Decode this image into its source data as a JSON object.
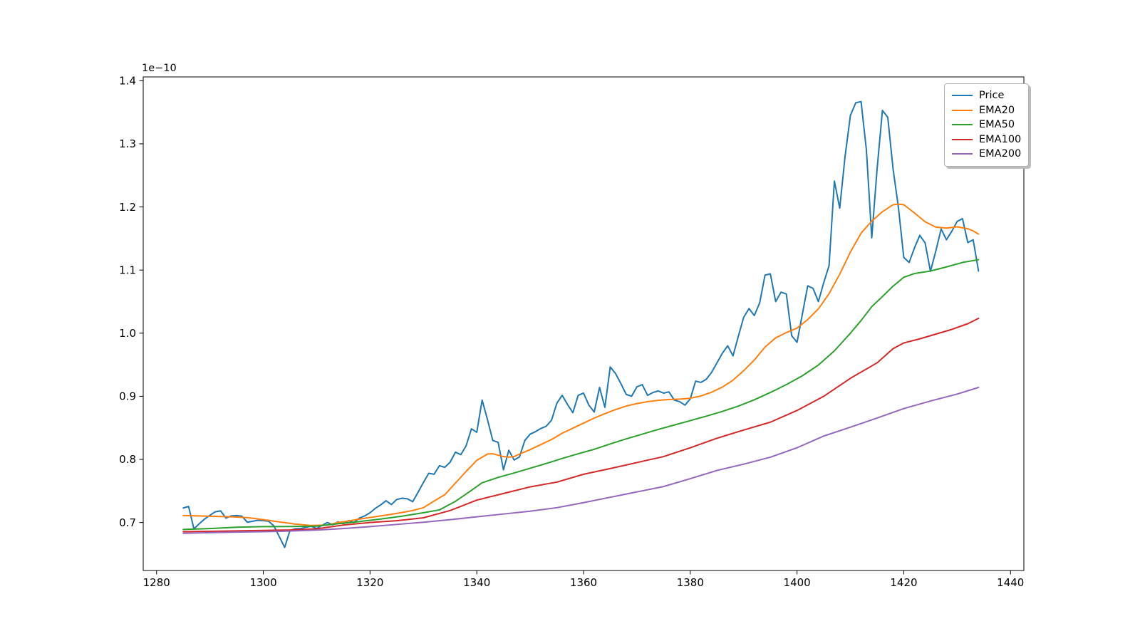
{
  "chart_data": {
    "type": "line",
    "title": "",
    "xlabel": "",
    "ylabel": "",
    "y_offset_label": "1e−10",
    "grid": false,
    "xlim": [
      1277.5,
      1442.5
    ],
    "ylim": [
      0.624,
      1.406
    ],
    "x_ticks": [
      1280,
      1300,
      1320,
      1340,
      1360,
      1380,
      1400,
      1420,
      1440
    ],
    "y_ticks": [
      0.7,
      0.8,
      0.9,
      1.0,
      1.1,
      1.2,
      1.3,
      1.4
    ],
    "legend": {
      "position": "upper right",
      "entries": [
        {
          "label": "Price",
          "color": "#1f77b4"
        },
        {
          "label": "EMA20",
          "color": "#ff7f0e"
        },
        {
          "label": "EMA50",
          "color": "#2ca02c"
        },
        {
          "label": "EMA100",
          "color": "#d62728"
        },
        {
          "label": "EMA200",
          "color": "#9467bd"
        }
      ]
    },
    "series": [
      {
        "name": "Price",
        "color": "#1f77b4",
        "x_start": 1285,
        "x_step": 1,
        "y": [
          0.723,
          0.7255,
          0.69,
          0.698,
          0.7055,
          0.7115,
          0.717,
          0.7185,
          0.707,
          0.7105,
          0.711,
          0.71,
          0.7005,
          0.702,
          0.7035,
          0.703,
          0.702,
          0.6945,
          0.6775,
          0.6605,
          0.6875,
          0.69,
          0.6905,
          0.6925,
          0.694,
          0.6905,
          0.6955,
          0.7,
          0.6965,
          0.701,
          0.698,
          0.703,
          0.7,
          0.707,
          0.7105,
          0.7155,
          0.7225,
          0.728,
          0.7345,
          0.7285,
          0.7365,
          0.7385,
          0.7375,
          0.733,
          0.748,
          0.7635,
          0.778,
          0.7765,
          0.79,
          0.7875,
          0.7955,
          0.8115,
          0.8075,
          0.8215,
          0.8485,
          0.843,
          0.894,
          0.863,
          0.83,
          0.827,
          0.7835,
          0.8145,
          0.799,
          0.804,
          0.83,
          0.84,
          0.844,
          0.849,
          0.8525,
          0.862,
          0.889,
          0.9015,
          0.887,
          0.874,
          0.9015,
          0.905,
          0.886,
          0.875,
          0.914,
          0.8825,
          0.9465,
          0.936,
          0.92,
          0.903,
          0.9,
          0.915,
          0.9185,
          0.9015,
          0.906,
          0.9085,
          0.905,
          0.907,
          0.894,
          0.8915,
          0.886,
          0.896,
          0.924,
          0.922,
          0.927,
          0.938,
          0.953,
          0.968,
          0.98,
          0.964,
          0.995,
          1.025,
          1.039,
          1.028,
          1.048,
          1.092,
          1.094,
          1.05,
          1.065,
          1.062,
          0.996,
          0.9855,
          1.03,
          1.075,
          1.071,
          1.05,
          1.08,
          1.107,
          1.241,
          1.198,
          1.28,
          1.345,
          1.365,
          1.367,
          1.29,
          1.151,
          1.26,
          1.353,
          1.342,
          1.26,
          1.199,
          1.12,
          1.112,
          1.135,
          1.155,
          1.143,
          1.098,
          1.13,
          1.165,
          1.148,
          1.1615,
          1.177,
          1.1815,
          1.1435,
          1.148,
          1.0985
        ]
      },
      {
        "name": "EMA20",
        "color": "#ff7f0e",
        "x": [
          1285,
          1288,
          1291,
          1294,
          1297,
          1300,
          1303,
          1306,
          1309,
          1312,
          1314,
          1316,
          1318,
          1320,
          1322,
          1324,
          1326,
          1328,
          1330,
          1332,
          1334,
          1336,
          1338,
          1340,
          1342,
          1343,
          1345,
          1346,
          1347,
          1348,
          1350,
          1352,
          1354,
          1356,
          1358,
          1360,
          1362,
          1364,
          1366,
          1368,
          1370,
          1372,
          1374,
          1376,
          1378,
          1380,
          1382,
          1384,
          1386,
          1388,
          1390,
          1392,
          1394,
          1396,
          1398,
          1400,
          1402,
          1404,
          1406,
          1408,
          1410,
          1412,
          1414,
          1416,
          1418,
          1419,
          1420,
          1422,
          1424,
          1426,
          1428,
          1430,
          1432,
          1433,
          1434
        ],
        "y": [
          0.711,
          0.7105,
          0.7098,
          0.709,
          0.7078,
          0.7045,
          0.701,
          0.6975,
          0.6953,
          0.696,
          0.7,
          0.7025,
          0.7055,
          0.708,
          0.7105,
          0.713,
          0.716,
          0.719,
          0.7235,
          0.734,
          0.744,
          0.7625,
          0.781,
          0.7985,
          0.8085,
          0.809,
          0.8045,
          0.8035,
          0.8045,
          0.8085,
          0.8155,
          0.8235,
          0.8315,
          0.8415,
          0.8495,
          0.8575,
          0.8655,
          0.8725,
          0.879,
          0.8845,
          0.8885,
          0.8915,
          0.8935,
          0.895,
          0.8955,
          0.897,
          0.9005,
          0.9065,
          0.9145,
          0.9255,
          0.9405,
          0.9575,
          0.978,
          0.9925,
          1.001,
          1.008,
          1.0215,
          1.0385,
          1.0625,
          1.0935,
          1.1285,
          1.1585,
          1.1775,
          1.1925,
          1.2035,
          1.2045,
          1.2035,
          1.1905,
          1.1765,
          1.168,
          1.1665,
          1.1685,
          1.1655,
          1.162,
          1.157
        ]
      },
      {
        "name": "EMA50",
        "color": "#2ca02c",
        "x": [
          1285,
          1290,
          1295,
          1300,
          1305,
          1310,
          1314,
          1318,
          1322,
          1326,
          1330,
          1333,
          1336,
          1339,
          1341,
          1344,
          1347,
          1350,
          1353,
          1356,
          1359,
          1362,
          1365,
          1368,
          1371,
          1374,
          1377,
          1380,
          1383,
          1386,
          1389,
          1392,
          1395,
          1398,
          1401,
          1404,
          1407,
          1410,
          1412,
          1414,
          1416,
          1418,
          1420,
          1422,
          1425,
          1428,
          1431,
          1434
        ],
        "y": [
          0.689,
          0.6905,
          0.6925,
          0.6935,
          0.6937,
          0.6943,
          0.698,
          0.7015,
          0.7055,
          0.71,
          0.7155,
          0.72,
          0.7335,
          0.751,
          0.763,
          0.7715,
          0.7785,
          0.786,
          0.7935,
          0.8015,
          0.809,
          0.816,
          0.8245,
          0.8325,
          0.84,
          0.8475,
          0.8545,
          0.8615,
          0.8685,
          0.876,
          0.8845,
          0.8945,
          0.906,
          0.9185,
          0.9325,
          0.9495,
          0.972,
          1.0,
          1.02,
          1.042,
          1.058,
          1.0745,
          1.0885,
          1.0945,
          1.0985,
          1.105,
          1.112,
          1.1165
        ]
      },
      {
        "name": "EMA100",
        "color": "#d62728",
        "x": [
          1285,
          1290,
          1295,
          1300,
          1305,
          1310,
          1315,
          1320,
          1325,
          1330,
          1335,
          1340,
          1345,
          1350,
          1355,
          1360,
          1365,
          1370,
          1375,
          1380,
          1385,
          1390,
          1395,
          1400,
          1405,
          1410,
          1415,
          1418,
          1420,
          1423,
          1426,
          1429,
          1432,
          1434
        ],
        "y": [
          0.6855,
          0.686,
          0.6868,
          0.6875,
          0.6882,
          0.69,
          0.696,
          0.7,
          0.7028,
          0.7075,
          0.719,
          0.7355,
          0.746,
          0.7565,
          0.764,
          0.7765,
          0.7855,
          0.795,
          0.8045,
          0.8185,
          0.8335,
          0.8465,
          0.859,
          0.8775,
          0.9,
          0.9285,
          0.953,
          0.9755,
          0.9845,
          0.991,
          0.9985,
          1.006,
          1.015,
          1.0235
        ]
      },
      {
        "name": "EMA200",
        "color": "#9467bd",
        "x": [
          1285,
          1290,
          1295,
          1300,
          1305,
          1310,
          1315,
          1320,
          1325,
          1330,
          1335,
          1340,
          1345,
          1350,
          1355,
          1360,
          1365,
          1370,
          1375,
          1380,
          1385,
          1390,
          1395,
          1400,
          1405,
          1410,
          1415,
          1420,
          1425,
          1430,
          1434
        ],
        "y": [
          0.683,
          0.684,
          0.6848,
          0.6855,
          0.6865,
          0.688,
          0.6905,
          0.6935,
          0.697,
          0.7005,
          0.7045,
          0.709,
          0.7135,
          0.718,
          0.7235,
          0.7315,
          0.74,
          0.7485,
          0.757,
          0.7695,
          0.7825,
          0.7925,
          0.8035,
          0.8185,
          0.837,
          0.851,
          0.8655,
          0.8805,
          0.8925,
          0.9035,
          0.914
        ]
      }
    ]
  }
}
